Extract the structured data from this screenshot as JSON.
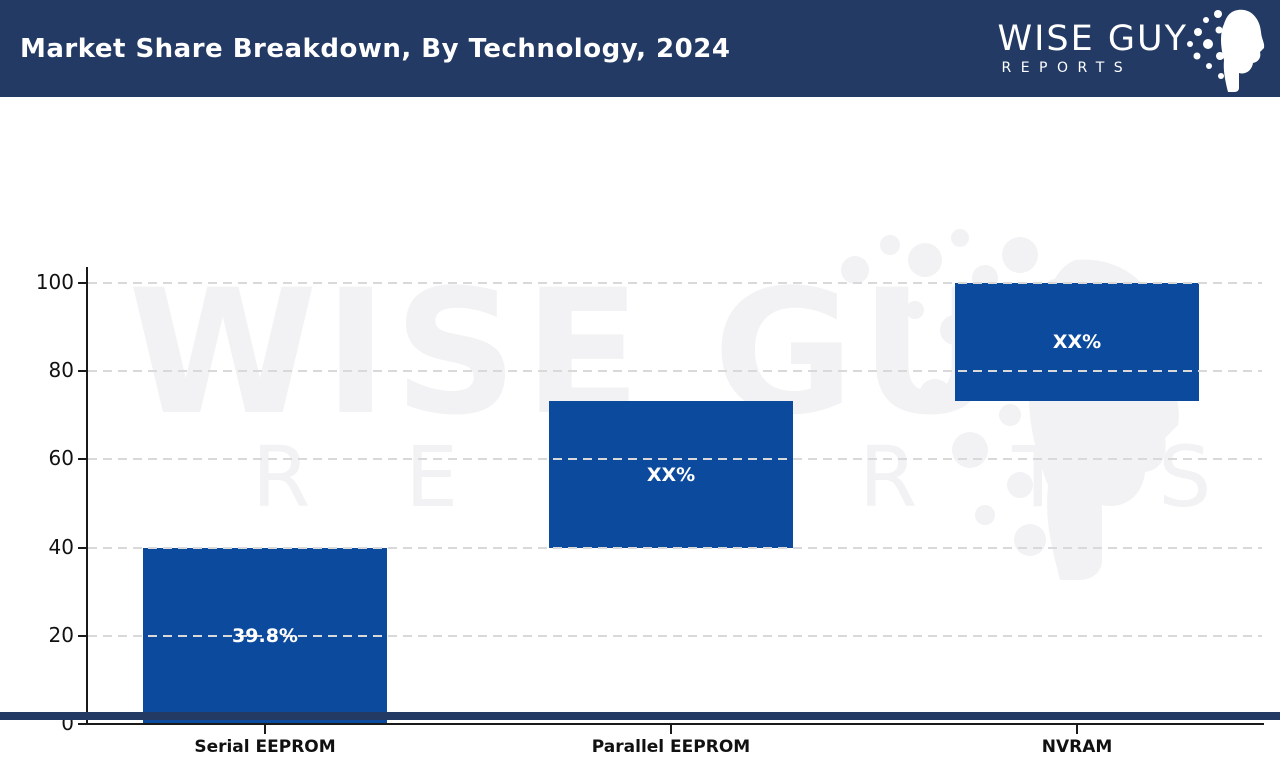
{
  "header": {
    "title": "Market Share Breakdown, By Technology, 2024",
    "logo": {
      "line1": "WISE GUY",
      "line2": "REPORTS"
    }
  },
  "watermark": {
    "line1": "WISE GUY",
    "line2": "R E P O R T S"
  },
  "footer": {},
  "chart_data": {
    "type": "bar",
    "subtype": "floating-segment-waterfall",
    "title": "Market Share Breakdown, By Technology, 2024",
    "categories": [
      "Serial EEPROM",
      "Parallel EEPROM",
      "NVRAM"
    ],
    "segments": [
      {
        "category": "Serial EEPROM",
        "start": 0,
        "end": 39.8,
        "label": "39.8%"
      },
      {
        "category": "Parallel EEPROM",
        "start": 39.8,
        "end": 73.3,
        "label": "XX%"
      },
      {
        "category": "NVRAM",
        "start": 73.3,
        "end": 100,
        "label": "XX%"
      }
    ],
    "xlabel": "",
    "ylabel": "",
    "ylim": [
      0,
      100
    ],
    "yticks": [
      0,
      20,
      40,
      60,
      80,
      100
    ],
    "grid": "horizontal-dashed, drawn above bars",
    "legend": "none",
    "bar_color": "#0C4A9E",
    "bar_label_color": "#ffffff"
  },
  "colors": {
    "header_bg": "#223A64",
    "footer_bg": "#223A64",
    "bar": "#0C4A9E",
    "gridline": "#d9d9d9",
    "axis": "#1a1a1a",
    "watermark": "#f2f2f4",
    "title_text": "#ffffff"
  }
}
